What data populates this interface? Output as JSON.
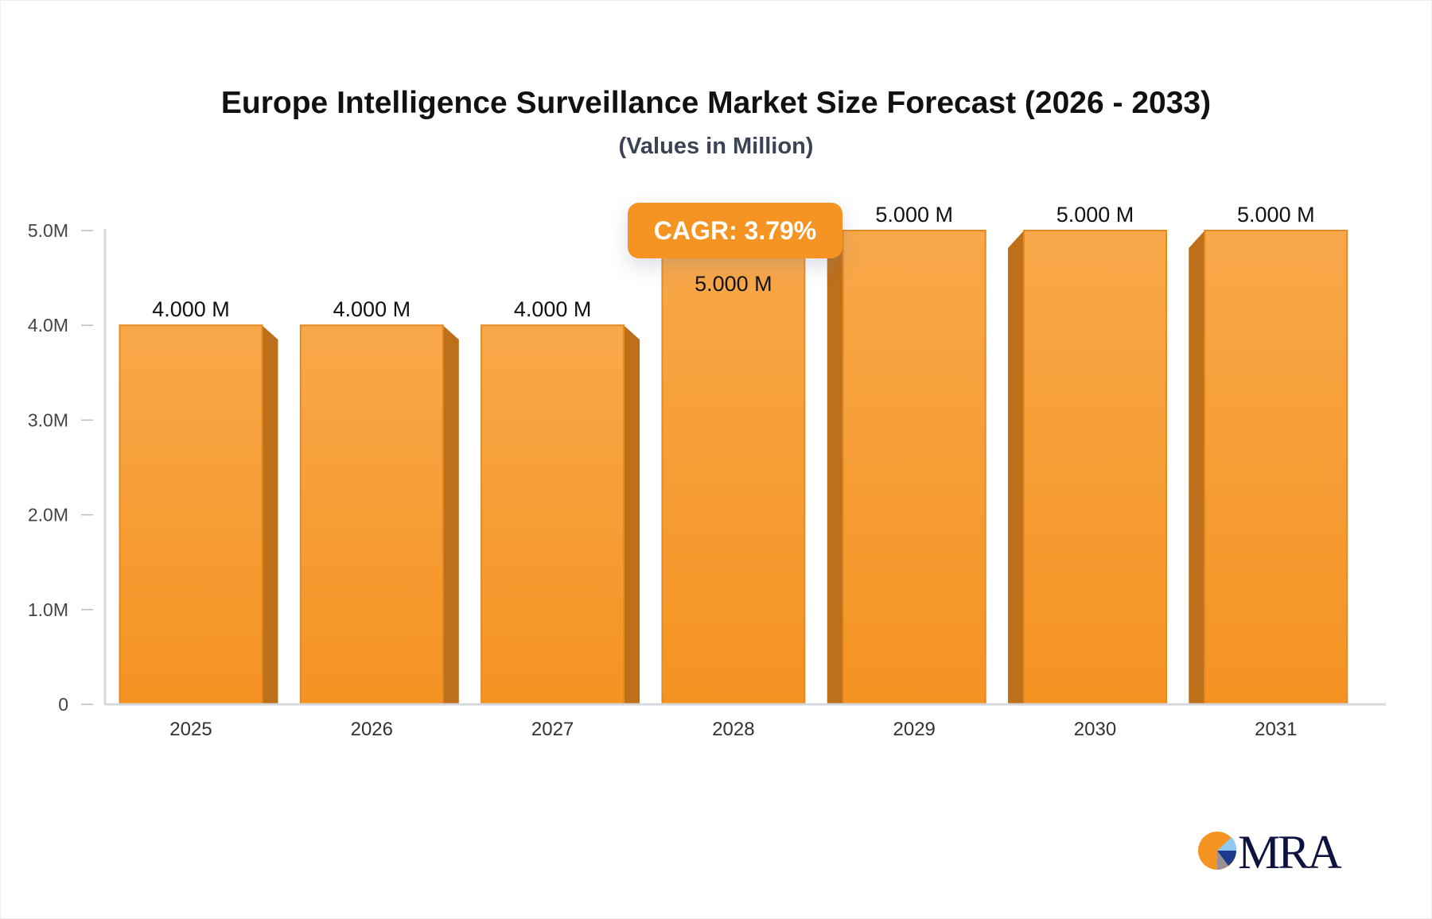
{
  "chart_data": {
    "type": "bar",
    "title": "Europe Intelligence Surveillance Market Size Forecast (2026 - 2033)",
    "subtitle": "(Values in Million)",
    "categories": [
      "2025",
      "2026",
      "2027",
      "2028",
      "2029",
      "2030",
      "2031"
    ],
    "values": [
      4.0,
      4.0,
      4.0,
      5.0,
      5.0,
      5.0,
      5.0
    ],
    "data_labels": [
      "4.000 M",
      "4.000 M",
      "4.000 M",
      "5.000 M",
      "5.000 M",
      "5.000 M",
      "5.000 M"
    ],
    "ylim": [
      0,
      5
    ],
    "yticks": [
      0,
      1,
      2,
      3,
      4,
      5
    ],
    "ytick_labels": [
      "0",
      "1.0M",
      "2.0M",
      "3.0M",
      "4.0M",
      "5.0M"
    ],
    "xlabel": "",
    "ylabel": "",
    "grid": false,
    "bar_color": "#f7a03a",
    "annotation": "CAGR: 3.79%"
  },
  "logo": {
    "text": "MRA"
  }
}
